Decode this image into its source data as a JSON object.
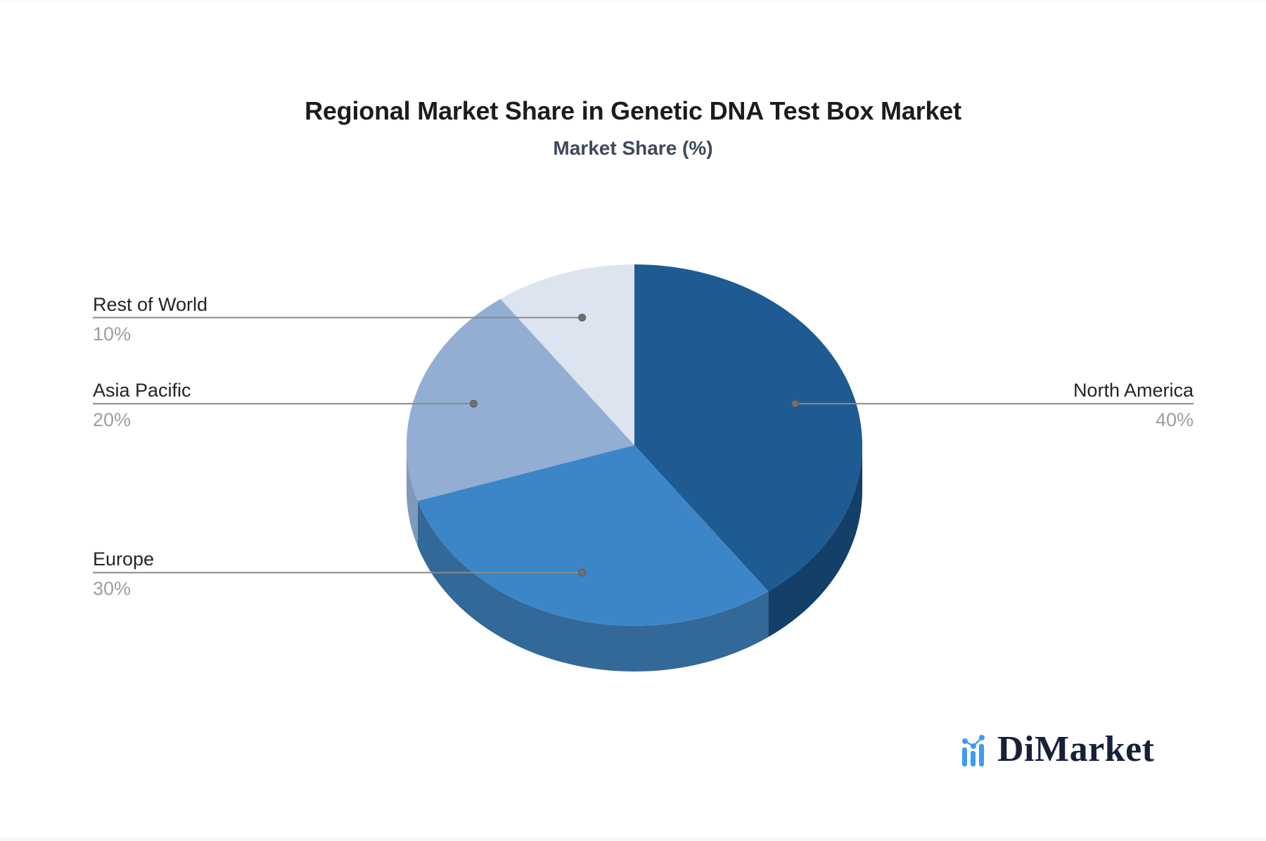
{
  "chart_data": {
    "type": "pie",
    "style": "3d",
    "title": "Regional Market Share in Genetic DNA Test Box Market",
    "subtitle": "Market Share (%)",
    "unit": "%",
    "start_angle_deg": 0,
    "direction": "clockwise",
    "segments": [
      {
        "label": "North America",
        "value": 40,
        "display": "40%",
        "color": "#1E5B93",
        "side_color": "#143F68",
        "callout_side": "right"
      },
      {
        "label": "Europe",
        "value": 30,
        "display": "30%",
        "color": "#3C86C8",
        "side_color": "#336999",
        "callout_side": "left"
      },
      {
        "label": "Asia Pacific",
        "value": 20,
        "display": "20%",
        "color": "#92AED3",
        "side_color": "#8099BA",
        "callout_side": "left"
      },
      {
        "label": "Rest of World",
        "value": 10,
        "display": "10%",
        "color": "#DCE4EF",
        "side_color": "#C3CEDE",
        "callout_side": "left"
      }
    ],
    "legend": "none",
    "callout_line_color": "#898989",
    "callout_dot_color": "#6f7070",
    "label_color": "#242424",
    "pct_color": "#9e9e9e"
  },
  "branding": {
    "logo_text": "DiMarket",
    "logo_icon": "bar-chart-trend-icon",
    "logo_text_color": "#16203a",
    "logo_icon_color": "#3e9bf4"
  }
}
